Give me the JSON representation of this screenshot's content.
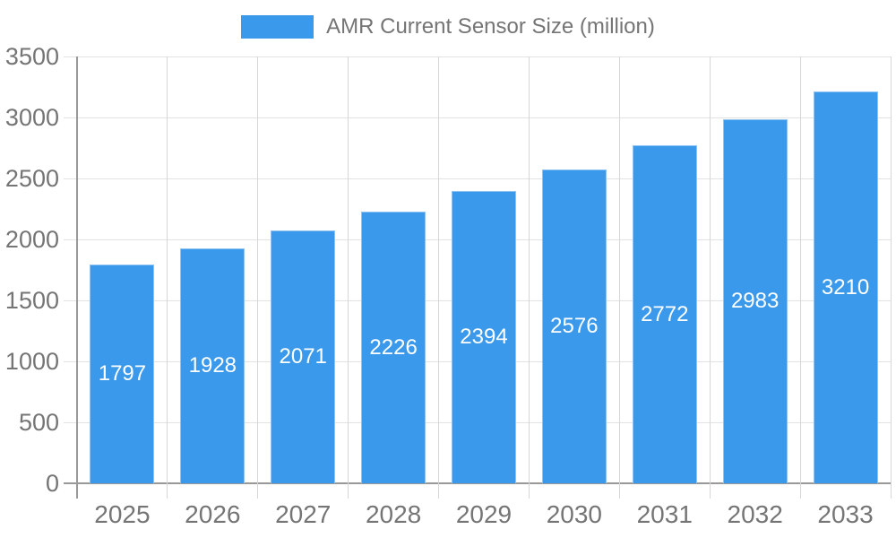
{
  "chart_data": {
    "type": "bar",
    "title": "AMR Current Sensor Size (million)",
    "categories": [
      "2025",
      "2026",
      "2027",
      "2028",
      "2029",
      "2030",
      "2031",
      "2032",
      "2033"
    ],
    "values": [
      1797,
      1928,
      2071,
      2226,
      2394,
      2576,
      2772,
      2983,
      3210
    ],
    "xlabel": "",
    "ylabel": "",
    "ylim": [
      0,
      3500
    ],
    "yticks": [
      0,
      500,
      1000,
      1500,
      2000,
      2500,
      3000,
      3500
    ],
    "grid": true,
    "legend_position": "top",
    "colors": {
      "bar": "#3b99ec",
      "bar_edge": "#8ec4f3",
      "bar_label_text": "#ffffff",
      "axis_text": "#757575",
      "grid_line": "#e2e2e2",
      "tick_line": "#d6d6d6",
      "axis_line": "#999999",
      "background": "#ffffff"
    }
  }
}
